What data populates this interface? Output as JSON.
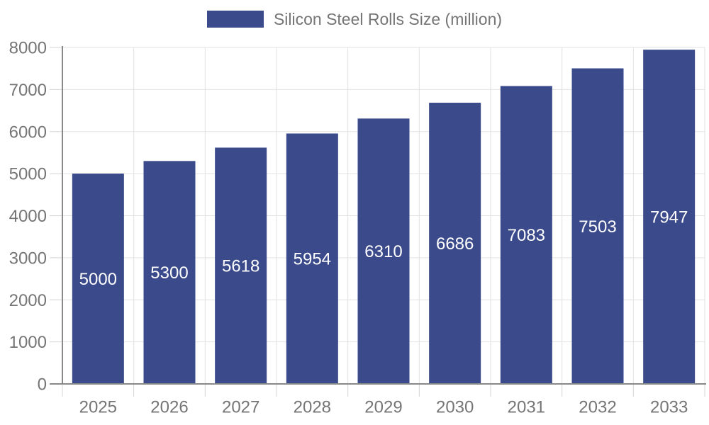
{
  "chart_data": {
    "type": "bar",
    "title": "Silicon Steel Rolls Size (million)",
    "legend": "Silicon Steel Rolls Size (million)",
    "legend_position": "top-center",
    "categories": [
      "2025",
      "2026",
      "2027",
      "2028",
      "2029",
      "2030",
      "2031",
      "2032",
      "2033"
    ],
    "values": [
      5000,
      5300,
      5618,
      5954,
      6310,
      6686,
      7083,
      7503,
      7947
    ],
    "xlabel": "",
    "ylabel": "",
    "ylim": [
      0,
      8000
    ],
    "yticks": [
      0,
      1000,
      2000,
      3000,
      4000,
      5000,
      6000,
      7000,
      8000
    ],
    "grid": true,
    "value_label_position": "inside-center",
    "colors": {
      "bar": "#3A4A8B",
      "value_label": "#FFFFFF",
      "axis": "#898989",
      "grid": "#E2E2E2",
      "tick": "#D4D4D4",
      "text": "#757575",
      "background": "#FFFFFF"
    }
  }
}
